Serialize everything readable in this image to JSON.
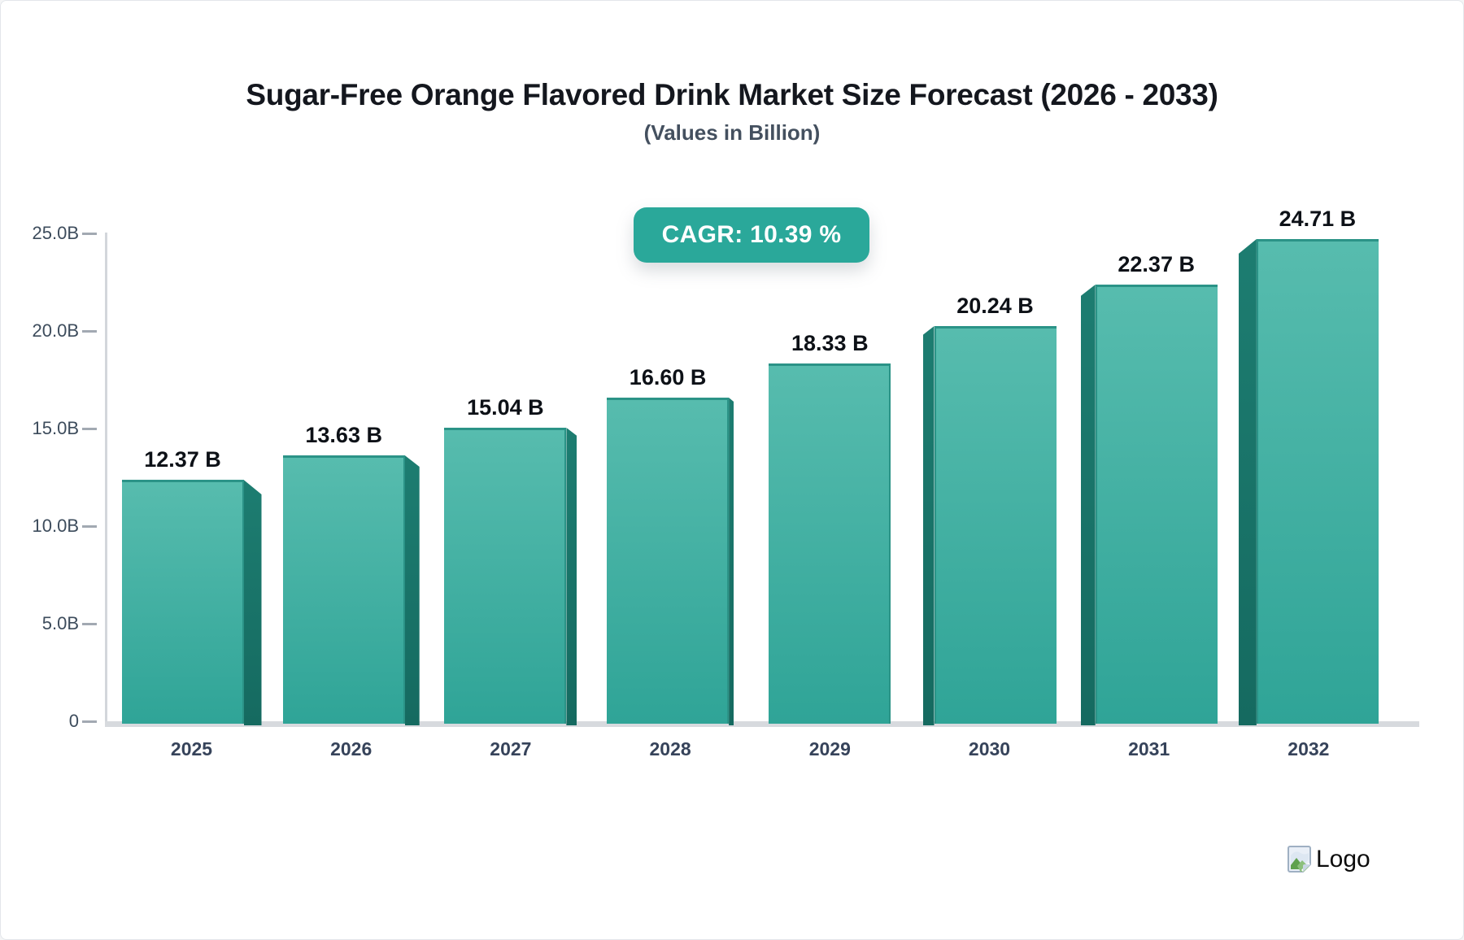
{
  "header": {
    "title": "Sugar-Free Orange Flavored Drink Market Size Forecast (2026 - 2033)",
    "subtitle": "(Values in Billion)"
  },
  "badge": {
    "label": "CAGR: 10.39 %"
  },
  "logo": {
    "alt": "Logo"
  },
  "chart_data": {
    "type": "bar",
    "title": "Sugar-Free Orange Flavored Drink Market Size Forecast (2026 - 2033)",
    "subtitle": "(Values in Billion)",
    "cagr_label": "CAGR: 10.39 %",
    "categories": [
      "2025",
      "2026",
      "2027",
      "2028",
      "2029",
      "2030",
      "2031",
      "2032"
    ],
    "values": [
      12.37,
      13.63,
      15.04,
      16.6,
      18.33,
      20.24,
      22.37,
      24.71
    ],
    "value_labels": [
      "12.37 B",
      "13.63 B",
      "15.04 B",
      "16.60 B",
      "18.33 B",
      "20.24 B",
      "22.37 B",
      "24.71 B"
    ],
    "ytick_values": [
      0,
      5,
      10,
      15,
      20,
      25
    ],
    "ytick_labels": [
      "0",
      "5.0B",
      "10.0B",
      "15.0B",
      "20.0B",
      "25.0B"
    ],
    "ylim": [
      0,
      25
    ],
    "xlabel": "",
    "ylabel": "",
    "grid": false,
    "legend": "none",
    "colors": {
      "bar_face_top": "#57bcae",
      "bar_face_bottom": "#2fa497",
      "bar_edge": "#2b9387",
      "bar_side": "#1d7d71",
      "bar_side_dark": "#156a60",
      "badge_bg": "#2aa89a",
      "title_text": "#14171e",
      "subtitle_text": "#44505f",
      "axis_text": "#3d4c5c",
      "axis_line": "#d3d6db"
    }
  }
}
